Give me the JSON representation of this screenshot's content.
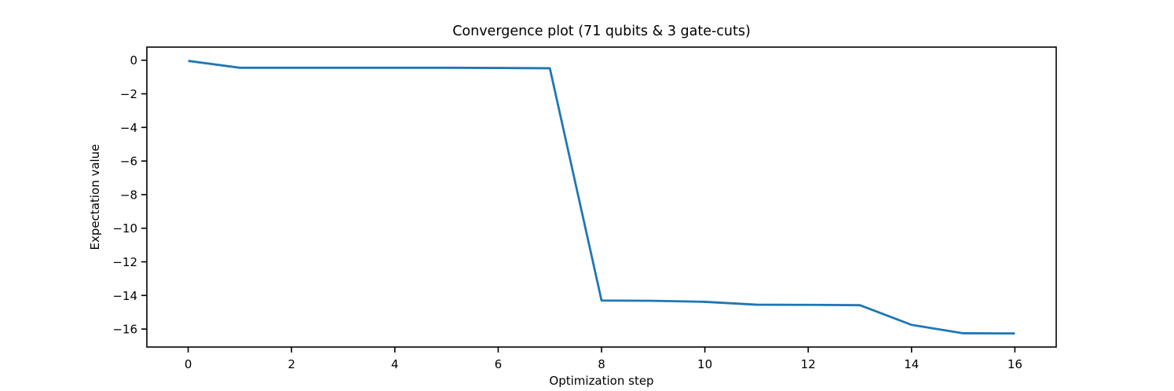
{
  "chart_data": {
    "type": "line",
    "title": "Convergence plot (71 qubits & 3 gate-cuts)",
    "xlabel": "Optimization step",
    "ylabel": "Expectation value",
    "x": [
      0,
      1,
      2,
      3,
      4,
      5,
      6,
      7,
      8,
      9,
      10,
      11,
      12,
      13,
      14,
      15,
      16
    ],
    "y": [
      -0.04,
      -0.45,
      -0.45,
      -0.45,
      -0.45,
      -0.45,
      -0.46,
      -0.48,
      -14.3,
      -14.32,
      -14.38,
      -14.55,
      -14.56,
      -14.58,
      -15.75,
      -16.25,
      -16.26
    ],
    "series_name": "expectation value",
    "line_color": "#1f77b4",
    "xlim": [
      -0.8,
      16.8
    ],
    "ylim": [
      -17.07,
      0.78
    ],
    "xticks": [
      0,
      2,
      4,
      6,
      8,
      10,
      12,
      14,
      16
    ],
    "xtick_labels": [
      "0",
      "2",
      "4",
      "6",
      "8",
      "10",
      "12",
      "14",
      "16"
    ],
    "yticks": [
      0,
      -2,
      -4,
      -6,
      -8,
      -10,
      -12,
      -14,
      -16
    ],
    "ytick_labels": [
      "0",
      "−2",
      "−4",
      "−6",
      "−8",
      "−10",
      "−12",
      "−14",
      "−16"
    ],
    "grid": false,
    "legend_position": "none",
    "background_color": "#ffffff"
  }
}
